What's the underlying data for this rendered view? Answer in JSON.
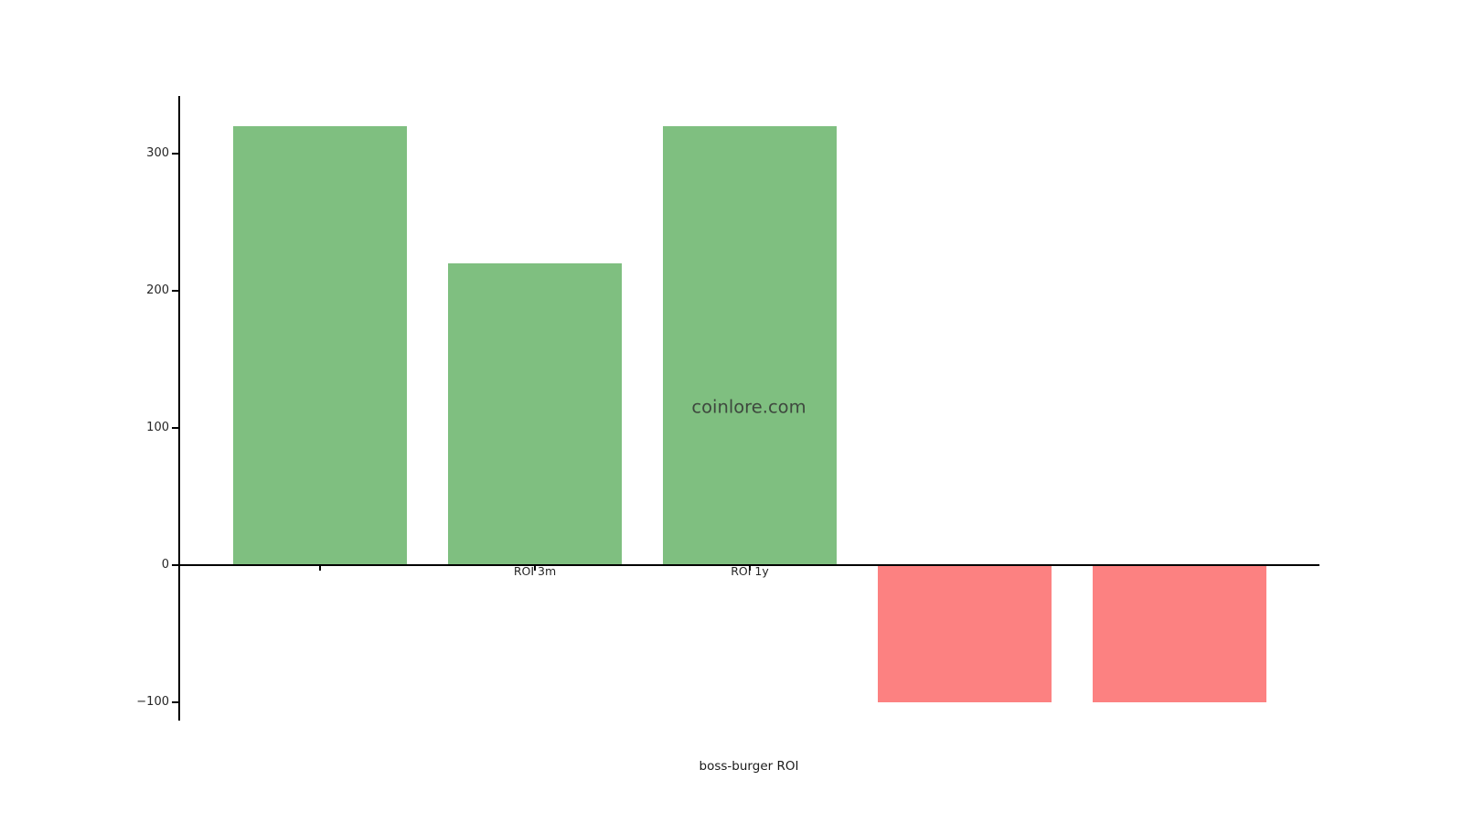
{
  "watermark": {
    "text": "coinlore.com"
  },
  "chart_data": {
    "type": "bar",
    "title": "",
    "xlabel": "boss-burger ROI",
    "ylabel": "",
    "categories": [
      "",
      "ROI 3m",
      "ROI 1y",
      "",
      ""
    ],
    "values": [
      320,
      220,
      320,
      -100,
      -100
    ],
    "y_ticks": [
      300,
      200,
      100,
      0,
      -100
    ],
    "ylim": [
      -113,
      342
    ],
    "grid": false,
    "legend": "none",
    "colors": {
      "positive": "#7fbf80",
      "negative": "#fc8181",
      "axis": "#000000",
      "tick_text": "#262626",
      "watermark_text": "#323232"
    }
  }
}
